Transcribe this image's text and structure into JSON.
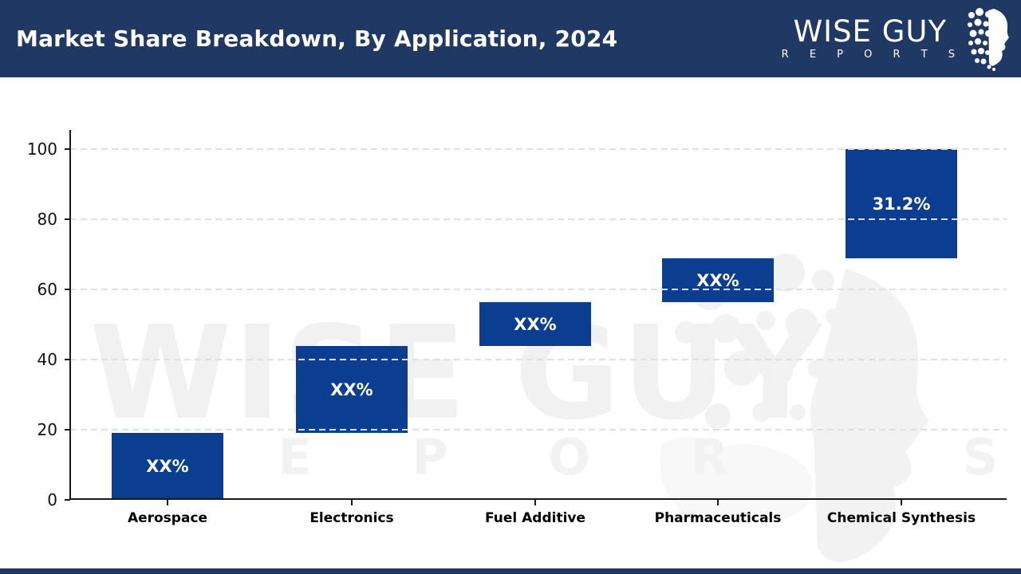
{
  "header": {
    "title": "Market Share Breakdown, By Application, 2024",
    "logo": {
      "wordmark": "WISE GUY",
      "subtext": "REPORTS"
    }
  },
  "watermark": {
    "wordmark": "WISE GUY",
    "subtext": "REPORTS"
  },
  "colors": {
    "header_bg": "#1f3864",
    "footer_bg": "#1f3864",
    "bar_blue": "#0b3d91",
    "gridline": "#e0e0e0",
    "watermark_gray": "#f1f1f1"
  },
  "chart_data": {
    "type": "bar",
    "subtype": "floating-waterfall",
    "title": "Market Share Breakdown, By Application, 2024",
    "xlabel": "",
    "ylabel": "",
    "ylim": [
      0,
      105
    ],
    "yticks": [
      0,
      20,
      40,
      60,
      80,
      100
    ],
    "grid": "horizontal-dashed",
    "legend": "none",
    "categories": [
      "Aerospace",
      "Electronics",
      "Fuel Additive",
      "Pharmaceuticals",
      "Chemical Synthesis"
    ],
    "segments": [
      {
        "category": "Aerospace",
        "start": 0,
        "end": 19,
        "value_label": "XX%"
      },
      {
        "category": "Electronics",
        "start": 19,
        "end": 43.9,
        "value_label": "XX%"
      },
      {
        "category": "Fuel Additive",
        "start": 43.9,
        "end": 56.3,
        "value_label": "XX%"
      },
      {
        "category": "Pharmaceuticals",
        "start": 56.3,
        "end": 68.8,
        "value_label": "XX%"
      },
      {
        "category": "Chemical Synthesis",
        "start": 68.8,
        "end": 100,
        "value_label": "31.2%"
      }
    ]
  }
}
